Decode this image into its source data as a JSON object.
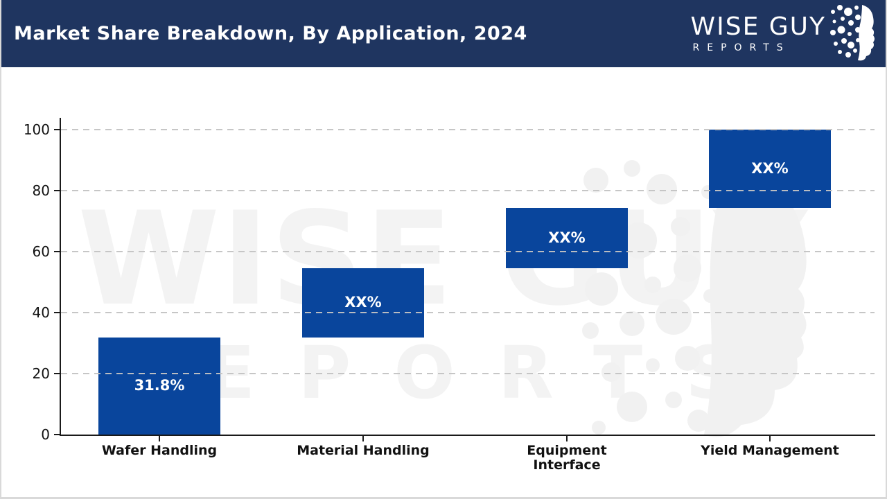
{
  "header": {
    "title": "Market Share Breakdown, By Application, 2024",
    "bg_color": "#1F3560",
    "logo": {
      "line1": "WISE GUY",
      "line2": "REPORTS"
    }
  },
  "watermark": {
    "line1": "WISE GUY",
    "line2": "REPORTS"
  },
  "chart_data": {
    "type": "bar",
    "subtype": "waterfall",
    "title": "Market Share Breakdown, By Application, 2024",
    "categories": [
      "Wafer Handling",
      "Material Handling",
      "Equipment Interface",
      "Yield Management"
    ],
    "category_lines": [
      [
        "Wafer Handling"
      ],
      [
        "Material Handling"
      ],
      [
        "Equipment",
        "Interface"
      ],
      [
        "Yield Management"
      ]
    ],
    "segments": [
      {
        "category": "Wafer Handling",
        "start": 0,
        "end": 31.8,
        "value": 31.8,
        "label": "31.8%"
      },
      {
        "category": "Material Handling",
        "start": 31.8,
        "end": 54.5,
        "value": 22.7,
        "label": "XX%"
      },
      {
        "category": "Equipment Interface",
        "start": 54.5,
        "end": 74.3,
        "value": 19.8,
        "label": "XX%"
      },
      {
        "category": "Yield Management",
        "start": 74.3,
        "end": 100,
        "value": 25.7,
        "label": "XX%"
      }
    ],
    "ylim": [
      0,
      100
    ],
    "yticks": [
      0,
      20,
      40,
      60,
      80,
      100
    ],
    "grid": "horizontal-dashed",
    "legend": "none",
    "xlabel": "",
    "ylabel": "",
    "bar_color": "#09459C",
    "bar_label_color": "#FFFFFF",
    "axis_color": "#1A1A1A",
    "gridline_color": "#CCCCCC"
  }
}
